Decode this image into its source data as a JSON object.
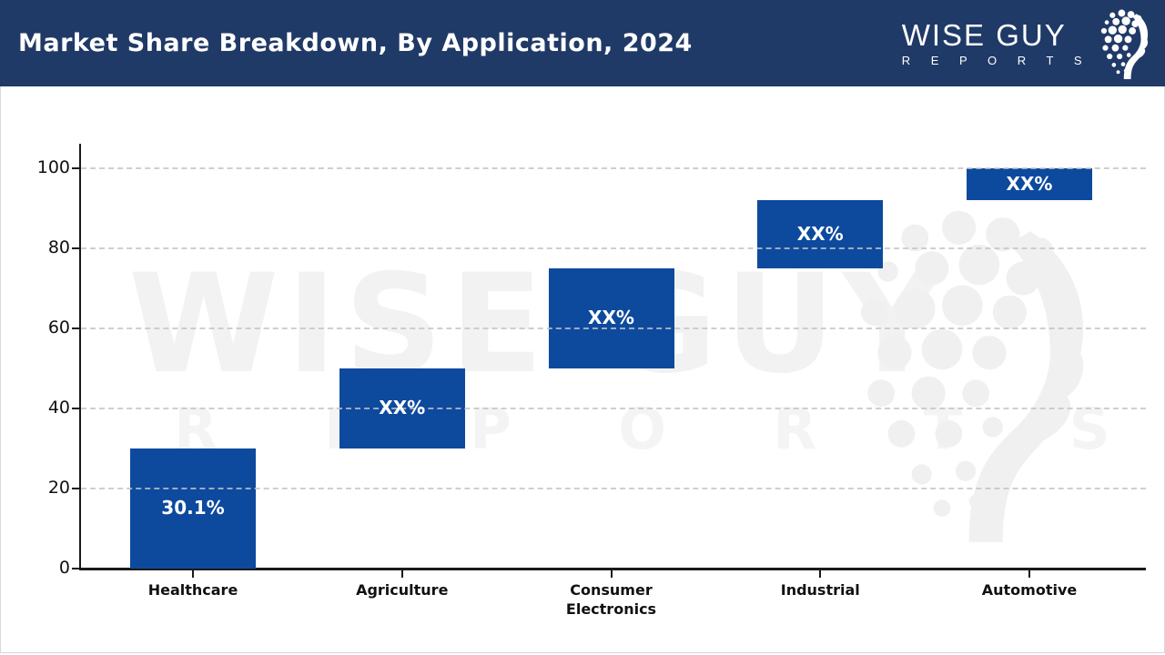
{
  "header": {
    "title": "Market Share Breakdown, By Application, 2024",
    "background_color": "#203a67"
  },
  "logo": {
    "wordmark": "WISE GUY",
    "subtext": "R E P O R T S",
    "head_icon": "dotted-head-profile"
  },
  "watermark": {
    "line1": "WISE GUY",
    "line2": "R E P O R T S",
    "head_icon": "dotted-head-profile"
  },
  "chart_data": {
    "type": "bar",
    "subtype": "waterfall-cumulative",
    "title": "Market Share Breakdown, By Application, 2024",
    "xlabel": "",
    "ylabel": "",
    "ylim": [
      0,
      100
    ],
    "yticks": [
      0,
      20,
      40,
      60,
      80,
      100
    ],
    "grid": "dashed-horizontal",
    "legend": "none",
    "bar_color": "#0d4a9e",
    "bar_label_color": "#ffffff",
    "categories": [
      "Healthcare",
      "Agriculture",
      "Consumer\nElectronics",
      "Industrial",
      "Automotive"
    ],
    "segments": [
      {
        "category": "Healthcare",
        "start": 0,
        "end": 30.1,
        "label": "30.1%"
      },
      {
        "category": "Agriculture",
        "start": 30.1,
        "end": 50,
        "label": "XX%"
      },
      {
        "category": "Consumer\nElectronics",
        "start": 50,
        "end": 75,
        "label": "XX%"
      },
      {
        "category": "Industrial",
        "start": 75,
        "end": 92,
        "label": "XX%"
      },
      {
        "category": "Automotive",
        "start": 92,
        "end": 100,
        "label": "XX%"
      }
    ]
  }
}
